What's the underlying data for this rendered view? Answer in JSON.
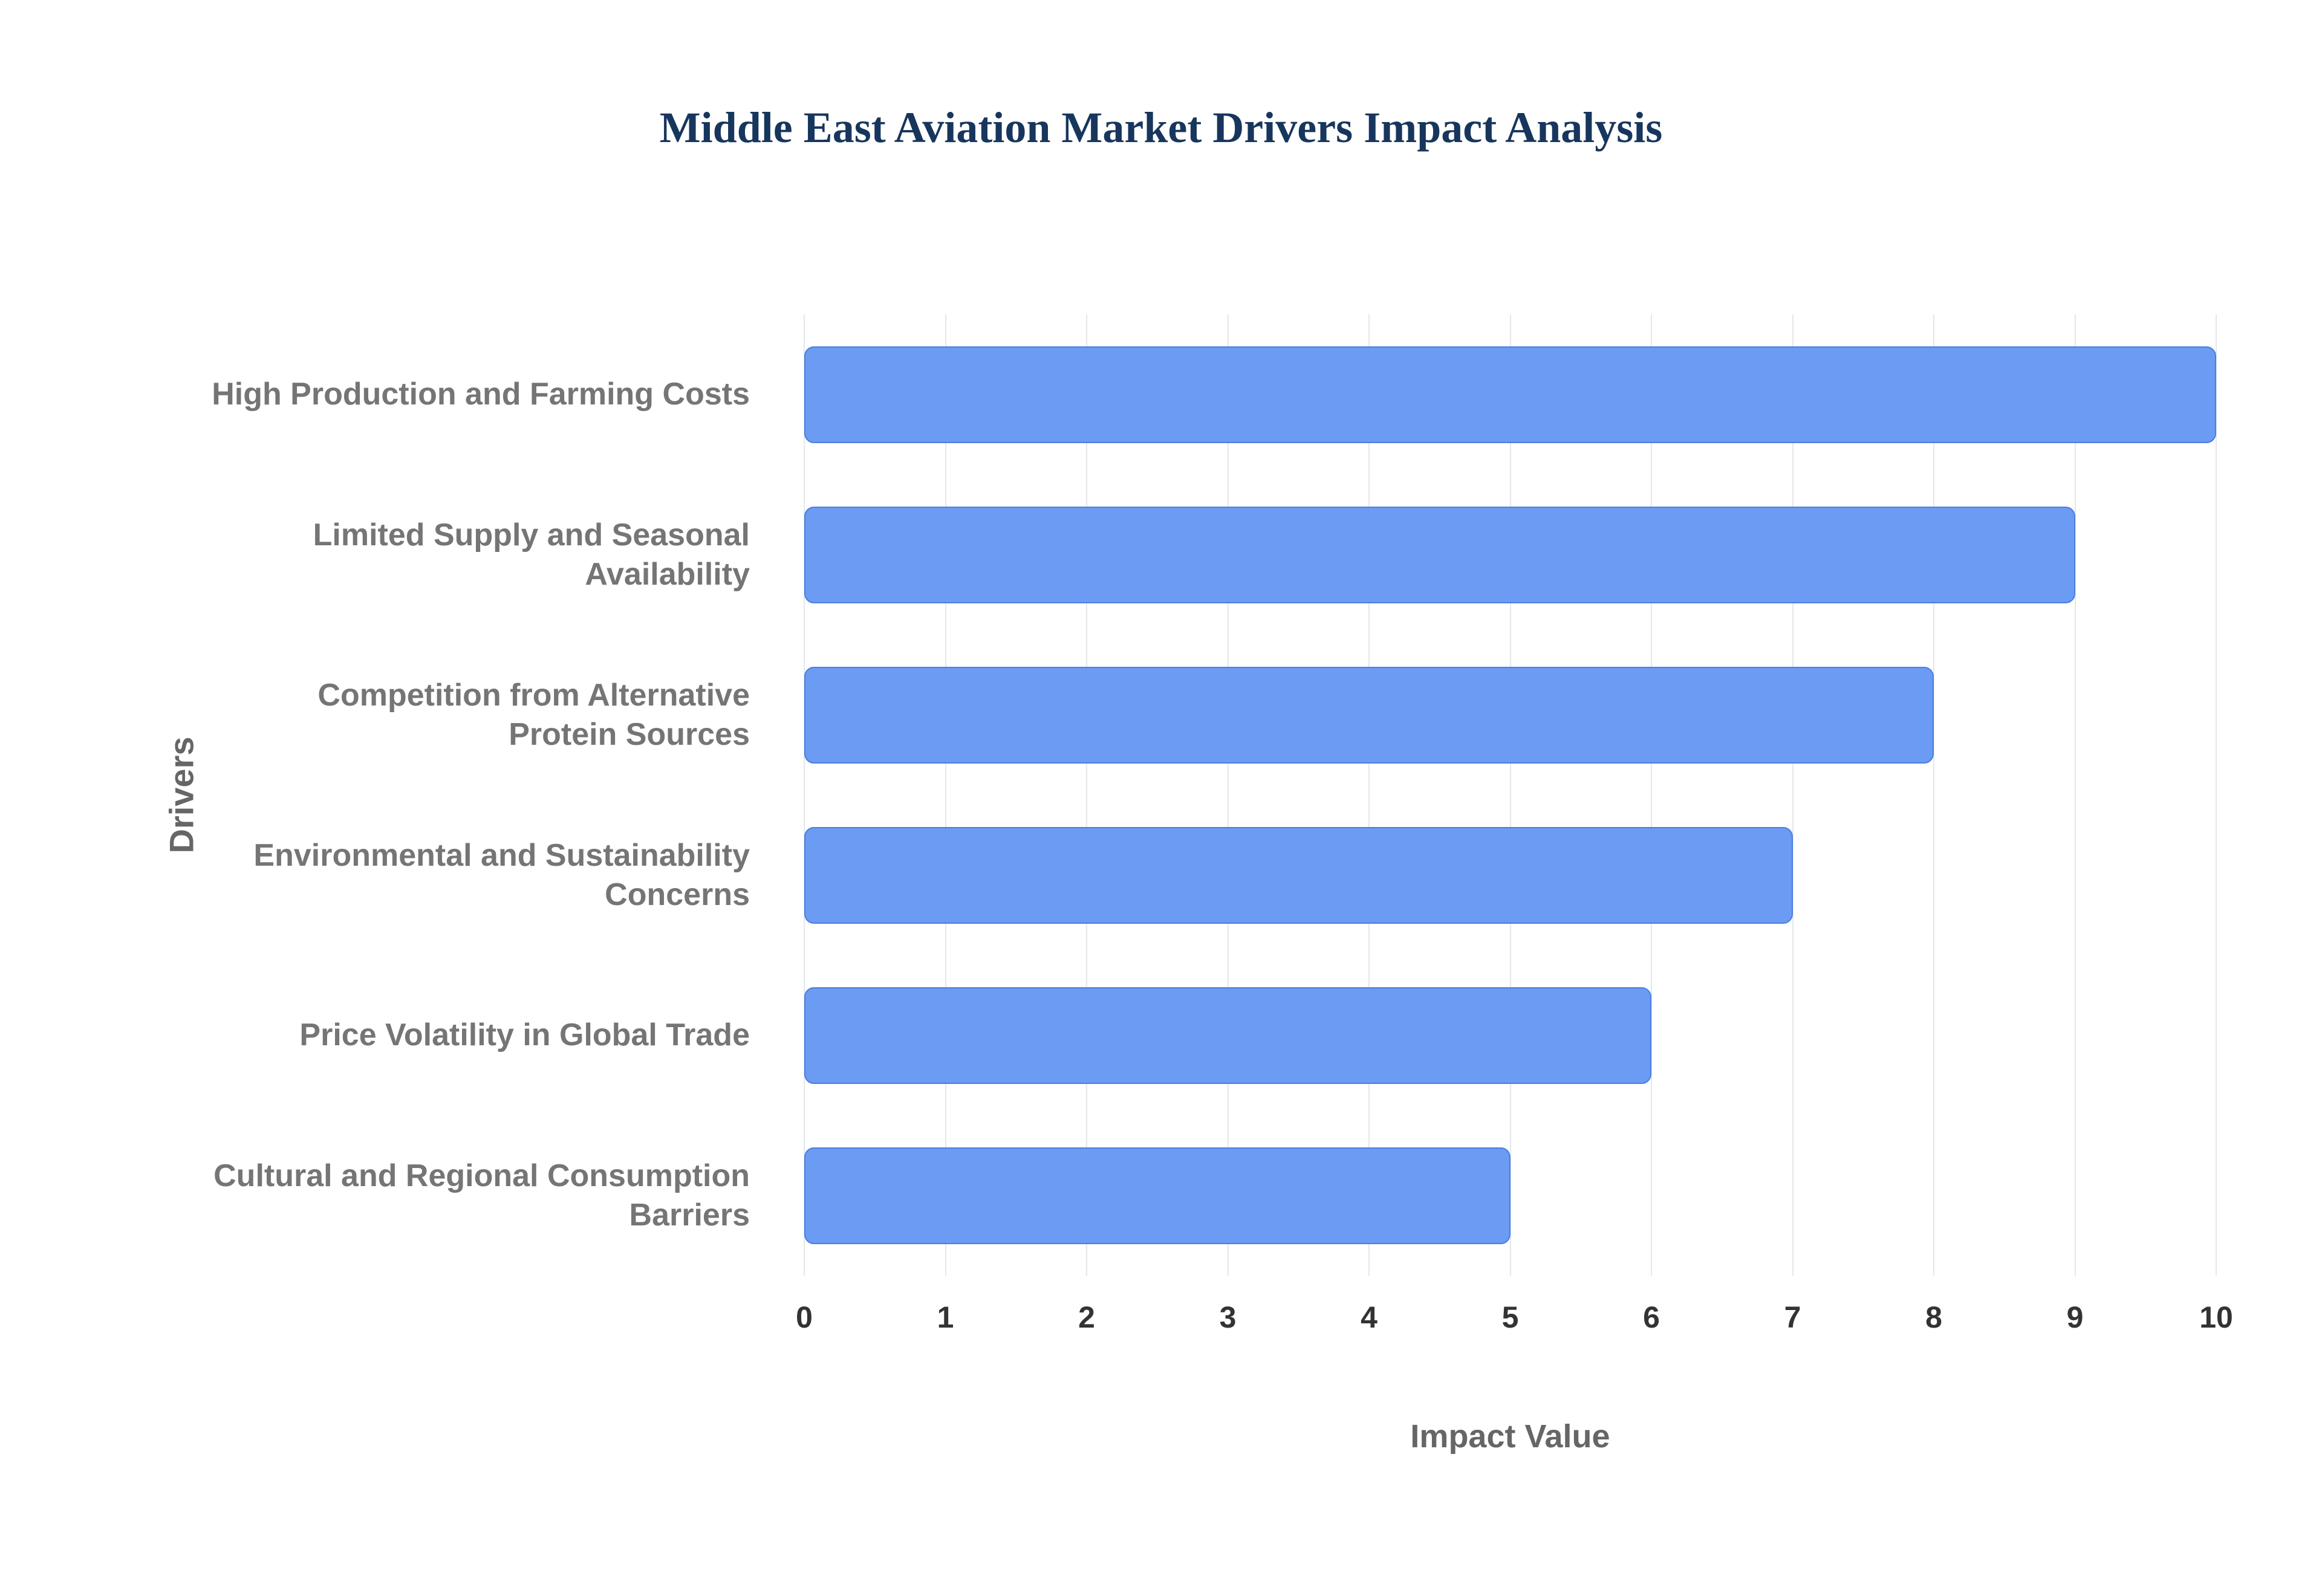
{
  "chart_data": {
    "type": "bar",
    "orientation": "horizontal",
    "title": "Middle East Aviation Market Drivers Impact Analysis",
    "xlabel": "Impact Value",
    "ylabel": "Drivers",
    "categories": [
      "High Production and Farming Costs",
      "Limited Supply and Seasonal Availability",
      "Competition from Alternative Protein Sources",
      "Environmental and Sustainability Concerns",
      "Price Volatility in Global Trade",
      "Cultural and Regional Consumption Barriers"
    ],
    "values": [
      10,
      9,
      8,
      7,
      6,
      5
    ],
    "xticks": [
      "0",
      "1",
      "2",
      "3",
      "4",
      "5",
      "6",
      "7",
      "8",
      "9",
      "10"
    ],
    "xlim": [
      0,
      10
    ],
    "grid": true,
    "legend": false,
    "bar_color": "#6B9BF2",
    "bar_border_color": "#4a7ee0",
    "title_color": "#17365d",
    "category_label_color": "#757575",
    "tick_label_color": "#333333",
    "grid_color": "#e4e7ec"
  }
}
